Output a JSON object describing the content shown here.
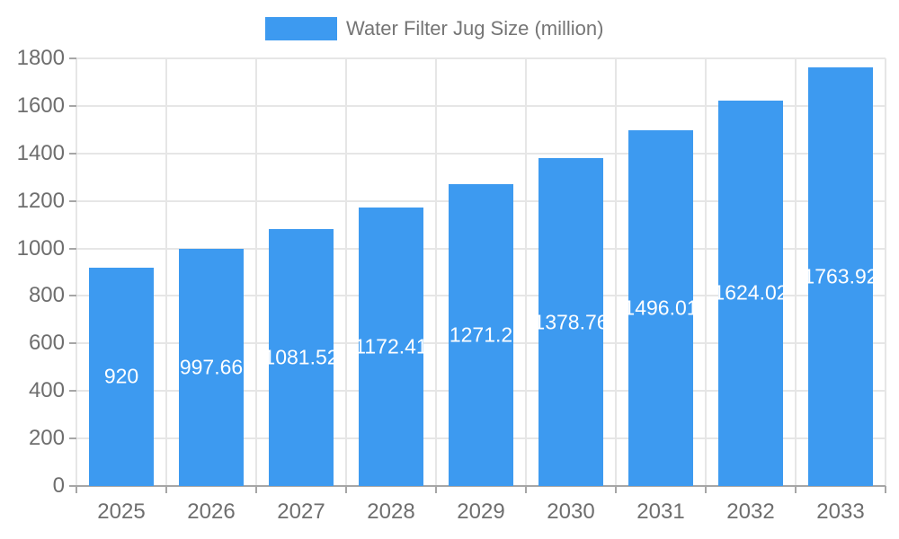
{
  "chart_data": {
    "type": "bar",
    "legend": "Water Filter Jug Size (million)",
    "legend_position": "top-center",
    "categories": [
      "2025",
      "2026",
      "2027",
      "2028",
      "2029",
      "2030",
      "2031",
      "2032",
      "2033"
    ],
    "values": [
      920,
      997.66,
      1081.52,
      1172.41,
      1271.2,
      1378.76,
      1496.01,
      1624.02,
      1763.92
    ],
    "bar_labels": [
      "920",
      "997.66",
      "1081.52",
      "1172.41",
      "1271.2",
      "1378.76",
      "1496.01",
      "1624.02",
      "1763.92"
    ],
    "ylim": [
      0,
      1800
    ],
    "ytick_step": 200,
    "ytick_labels": [
      "0",
      "200",
      "400",
      "600",
      "800",
      "1000",
      "1200",
      "1400",
      "1600",
      "1800"
    ],
    "grid": "both",
    "xlabel": "",
    "ylabel": "",
    "colors": {
      "bar": "#3D9AF0",
      "bar_label": "#FFFFFF",
      "legend_text": "#757575",
      "tick_label": "#6E6E6E",
      "gridline": "#E6E6E6",
      "baseline": "#A6A6A6"
    }
  }
}
